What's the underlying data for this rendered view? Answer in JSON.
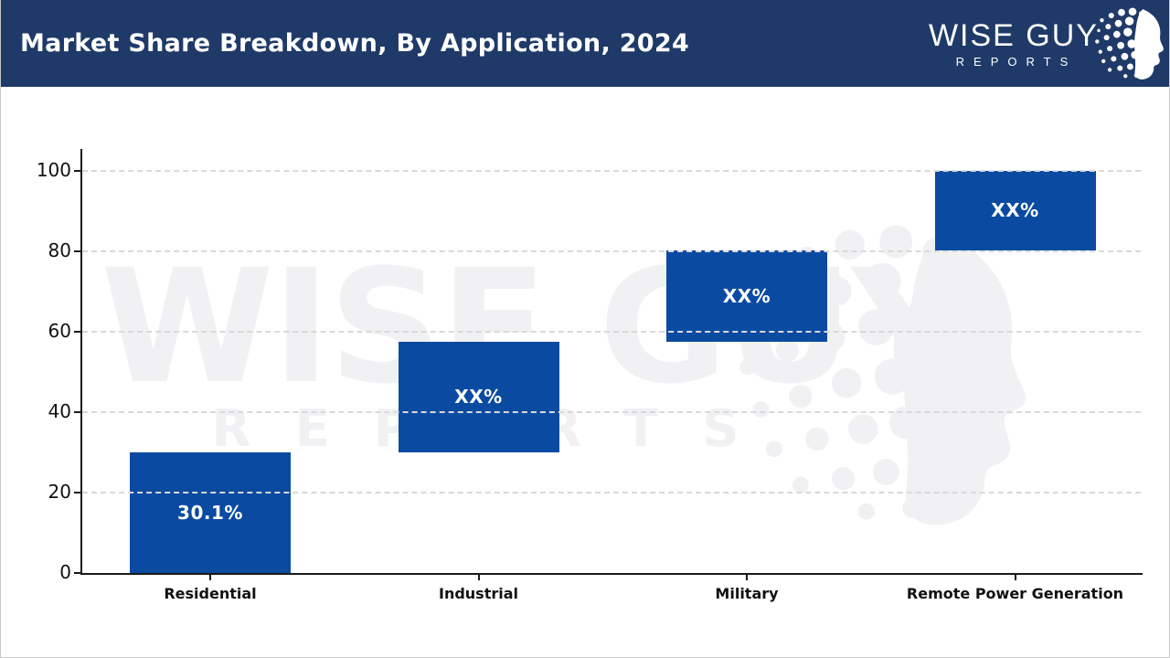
{
  "header": {
    "title": "Market Share Breakdown, By Application, 2024",
    "bg_color": "#1f3a68",
    "logo": {
      "wordmark": "WISE GUY",
      "subtext": "REPORTS"
    }
  },
  "watermark": {
    "wordmark": "WISE GUY",
    "subtext": "REPORTS"
  },
  "chart_data": {
    "type": "bar",
    "subtype": "waterfall",
    "title": "Market Share Breakdown, By Application, 2024",
    "categories": [
      "Residential",
      "Industrial",
      "Military",
      "Remote Power Generation"
    ],
    "segments": [
      {
        "category": "Residential",
        "start": 0,
        "end": 30.1,
        "label": "30.1%"
      },
      {
        "category": "Industrial",
        "start": 30.1,
        "end": 57.5,
        "label": "XX%"
      },
      {
        "category": "Military",
        "start": 57.5,
        "end": 80.3,
        "label": "XX%"
      },
      {
        "category": "Remote Power Generation",
        "start": 80.3,
        "end": 100,
        "label": "XX%"
      }
    ],
    "xlabel": "",
    "ylabel": "",
    "yticks": [
      0,
      20,
      40,
      60,
      80,
      100
    ],
    "ylim": [
      0,
      105
    ],
    "grid": "horizontal-dashed",
    "legend": "none",
    "bar_color": "#0b4aa1",
    "bar_label_color": "#ffffff",
    "axis_color": "#1a1a1a",
    "gridline_color": "#d9d9d9"
  }
}
